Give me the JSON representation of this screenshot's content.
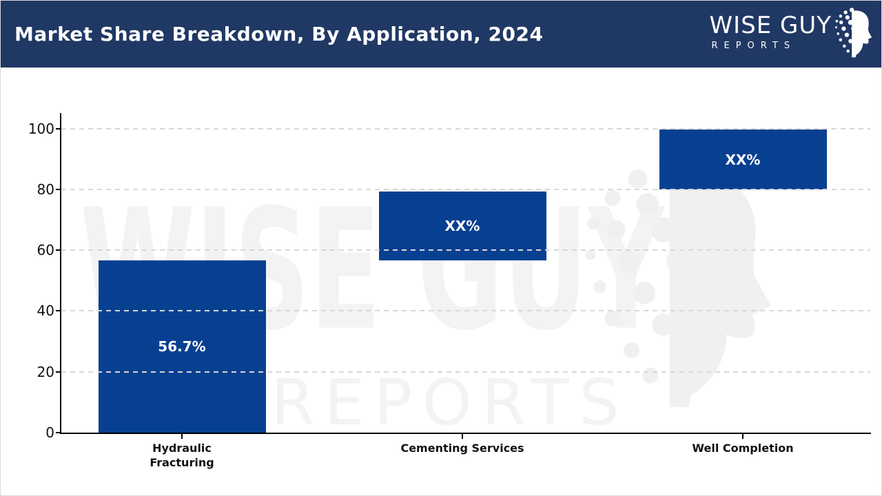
{
  "header": {
    "title": "Market Share Breakdown, By Application, 2024",
    "bg_color": "#203864",
    "logo": {
      "wordmark": "WISE GUY",
      "subtext": "REPORTS"
    }
  },
  "watermark": {
    "line1": "WISE GUY",
    "line2": "REPORTS"
  },
  "chart_data": {
    "type": "bar",
    "subtype": "waterfall-floating-segments",
    "title": "Market Share Breakdown, By Application, 2024",
    "categories": [
      "Hydraulic Fracturing",
      "Cementing Services",
      "Well Completion"
    ],
    "category_display": [
      "Hydraulic\nFracturing",
      "Cementing Services",
      "Well Completion"
    ],
    "segments": [
      {
        "category": "Hydraulic Fracturing",
        "start": 0,
        "end": 56.7,
        "label": "56.7%"
      },
      {
        "category": "Cementing Services",
        "start": 56.7,
        "end": 79.2,
        "label": "XX%"
      },
      {
        "category": "Well Completion",
        "start": 80.0,
        "end": 99.6,
        "label": "XX%"
      }
    ],
    "xlabel": "",
    "ylabel": "",
    "y_ticks": [
      0,
      20,
      40,
      60,
      80,
      100
    ],
    "ylim": [
      0,
      105
    ],
    "grid": {
      "horizontal": true,
      "style": "dashed",
      "color": "#d8d8d8"
    },
    "legend": "none",
    "bar_color": "#084091",
    "bar_label_color": "#ffffff",
    "axis_color": "#000000"
  }
}
